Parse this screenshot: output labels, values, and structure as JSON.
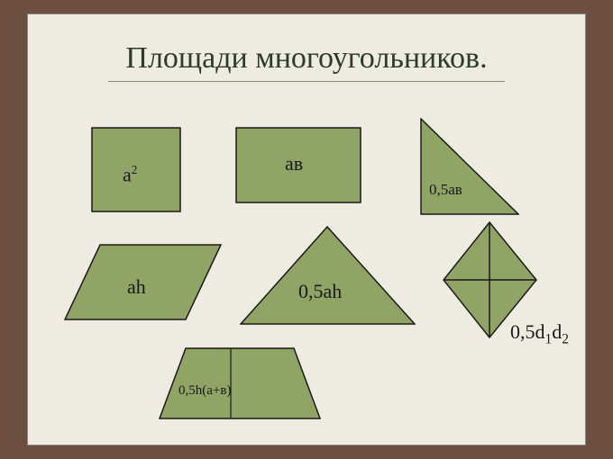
{
  "background_color": "#6d4f3f",
  "slide_background": "#eeece0",
  "title": "Площади многоугольников.",
  "title_fontsize": 34,
  "title_color": "#2d3b2d",
  "shape_fill": "#8fa465",
  "shape_stroke": "#1a1a1a",
  "label_color": "#1a1a1a",
  "shapes": {
    "square": {
      "name": "square",
      "formula_html": "а<sup>2</sup>",
      "label_fontsize": 22
    },
    "rectangle": {
      "name": "rectangle",
      "formula_html": "ав",
      "label_fontsize": 22
    },
    "right_tri": {
      "name": "right-triangle",
      "formula_html": "0,5ав",
      "label_fontsize": 17
    },
    "parallelogram": {
      "name": "parallelogram",
      "formula_html": "аh",
      "label_fontsize": 22
    },
    "triangle": {
      "name": "triangle",
      "formula_html": "0,5аh",
      "label_fontsize": 22
    },
    "rhombus": {
      "name": "rhombus",
      "formula_html": "0,5d<sub>1</sub>d<sub>2</sub>",
      "label_fontsize": 22
    },
    "trapezoid": {
      "name": "trapezoid",
      "formula_html": "0,5h(а+в)",
      "label_fontsize": 15
    }
  }
}
